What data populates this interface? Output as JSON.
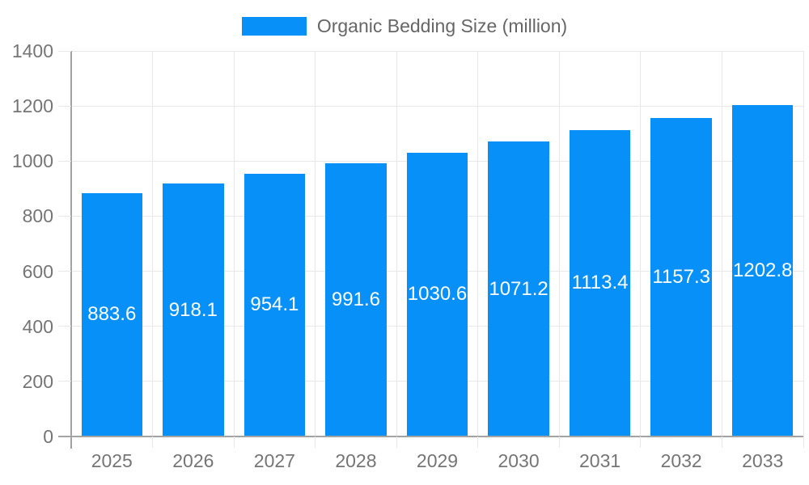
{
  "legend": {
    "label": "Organic Bedding Size (million)"
  },
  "colors": {
    "bar": "#0690f8",
    "grid": "#e8e8e8",
    "axis": "#a3a3a3",
    "tick_label": "#757575",
    "legend_text": "#666666",
    "value_label": "#ffffff",
    "background": "#ffffff"
  },
  "chart_data": {
    "type": "bar",
    "title": "Organic Bedding Size (million)",
    "series_name": "Organic Bedding Size (million)",
    "categories": [
      "2025",
      "2026",
      "2027",
      "2028",
      "2029",
      "2030",
      "2031",
      "2032",
      "2033"
    ],
    "values": [
      883.6,
      918.1,
      954.1,
      991.6,
      1030.6,
      1071.2,
      1113.4,
      1157.3,
      1202.8
    ],
    "xlabel": "",
    "ylabel": "",
    "ylim": [
      0,
      1400
    ],
    "yticks": [
      0,
      200,
      400,
      600,
      800,
      1000,
      1200,
      1400
    ],
    "grid": true,
    "legend_position": "top",
    "value_labels": "inside-center"
  }
}
